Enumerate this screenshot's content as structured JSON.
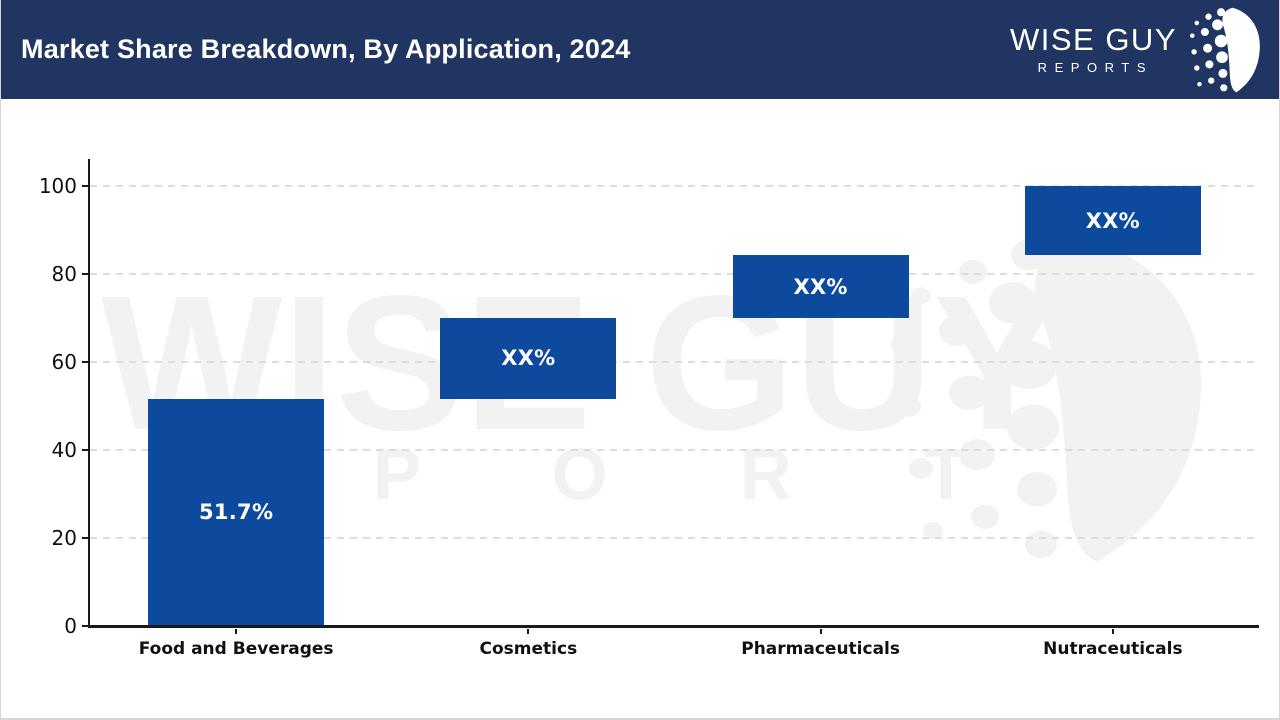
{
  "header": {
    "title": "Market Share Breakdown, By Application, 2024",
    "logo": {
      "line1": "WISE GUY",
      "line2": "REPORTS",
      "face_icon": "dotted-head-profile-icon"
    }
  },
  "watermark": {
    "line1": "WISE GUY",
    "line2": "P O R T S",
    "face_icon": "dotted-head-profile-icon"
  },
  "chart_data": {
    "type": "bar",
    "subtype": "waterfall",
    "title": "Market Share Breakdown, By Application, 2024",
    "categories": [
      "Food and Beverages",
      "Cosmetics",
      "Pharmaceuticals",
      "Nutraceuticals"
    ],
    "segments": [
      {
        "category": "Food and Beverages",
        "start": 0,
        "end": 51.7,
        "label": "51.7%"
      },
      {
        "category": "Cosmetics",
        "start": 51.7,
        "end": 70,
        "label": "XX%"
      },
      {
        "category": "Pharmaceuticals",
        "start": 70,
        "end": 84.3,
        "label": "XX%"
      },
      {
        "category": "Nutraceuticals",
        "start": 84.3,
        "end": 100,
        "label": "XX%"
      }
    ],
    "ylim": [
      0,
      100
    ],
    "yticks": [
      0,
      20,
      40,
      60,
      80,
      100
    ],
    "grid": "dashed-horizontal",
    "legend": "none",
    "bar_color": "#0d4a9e",
    "label_color": "#ffffff",
    "header_color": "#203561"
  }
}
